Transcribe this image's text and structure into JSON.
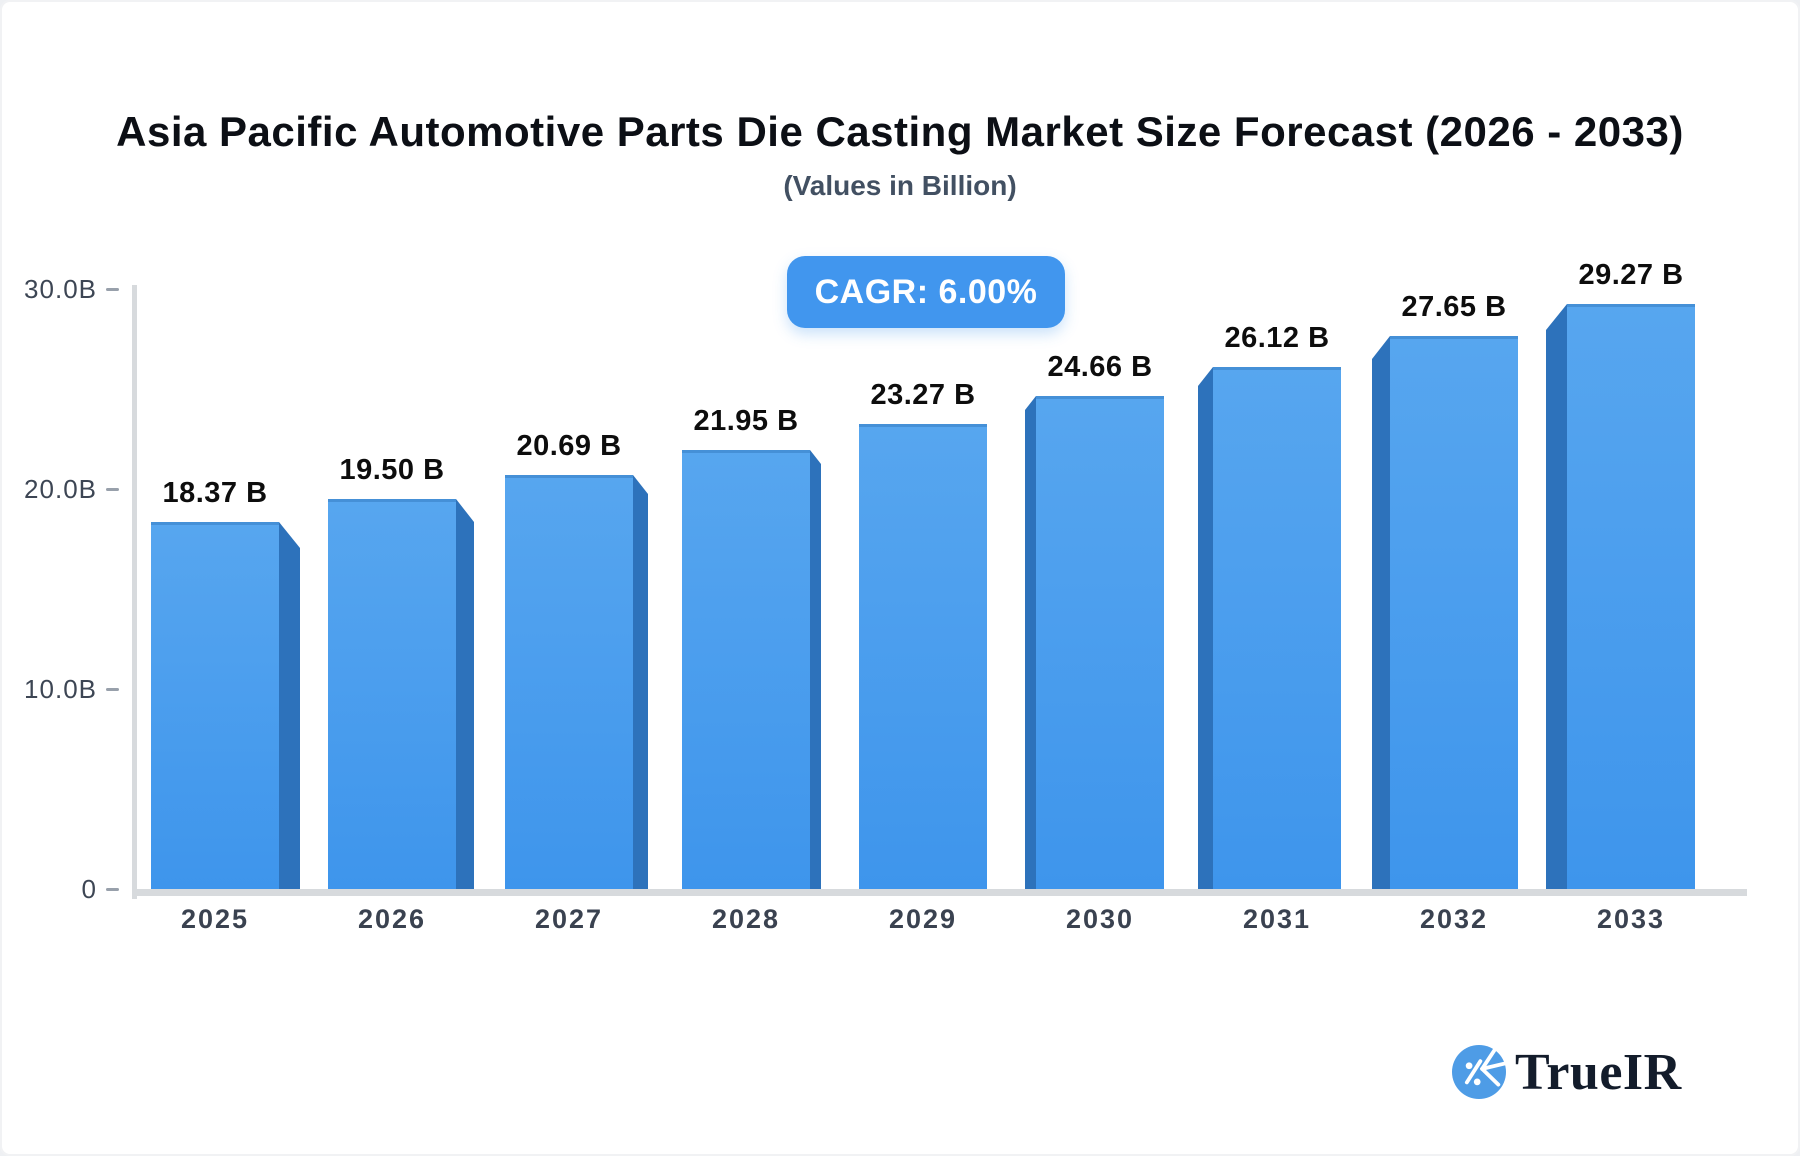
{
  "header": {
    "title": "Asia Pacific Automotive Parts Die Casting Market Size Forecast (2026 - 2033)",
    "subtitle": "(Values in Billion)"
  },
  "badge": {
    "label": "CAGR: 6.00%"
  },
  "chart_data": {
    "type": "bar",
    "title": "Asia Pacific Automotive Parts Die Casting Market Size Forecast (2026 - 2033)",
    "subtitle": "(Values in Billion)",
    "categories": [
      "2025",
      "2026",
      "2027",
      "2028",
      "2029",
      "2030",
      "2031",
      "2032",
      "2033"
    ],
    "values": [
      18.37,
      19.5,
      20.69,
      21.95,
      23.27,
      24.66,
      26.12,
      27.65,
      29.27
    ],
    "value_labels": [
      "18.37 B",
      "19.50 B",
      "20.69 B",
      "21.95 B",
      "23.27 B",
      "24.66 B",
      "26.12 B",
      "27.65 B",
      "29.27 B"
    ],
    "cagr_label": "CAGR: 6.00%",
    "xlabel": "",
    "ylabel": "",
    "ylim": [
      0,
      30
    ],
    "grid": false,
    "legend": "none",
    "yticks": [
      {
        "value": 0,
        "label": "0"
      },
      {
        "value": 10,
        "label": "10.0B"
      },
      {
        "value": 20,
        "label": "20.0B"
      },
      {
        "value": 30,
        "label": "30.0B"
      }
    ],
    "bar_style": "3d-perspective-center"
  },
  "logo": {
    "text": "TrueIR",
    "icon": "pie-chart-percent-icon"
  },
  "colors": {
    "badge_bg": "#4196ee",
    "bar_face_top": "#57a6ef",
    "bar_face_bottom": "#3e95ec",
    "bar_side": "#2d72bb",
    "axis_line": "#d7dadd",
    "tick_dash": "#98a0ab",
    "ytick_text": "#3d4654",
    "xtick_text": "#3a4250",
    "value_text": "#0d0d0d",
    "title_text": "#0c0f15",
    "subtitle_text": "#425062",
    "logo_circle": "#4e9ce6",
    "logo_text": "#131c2b"
  }
}
